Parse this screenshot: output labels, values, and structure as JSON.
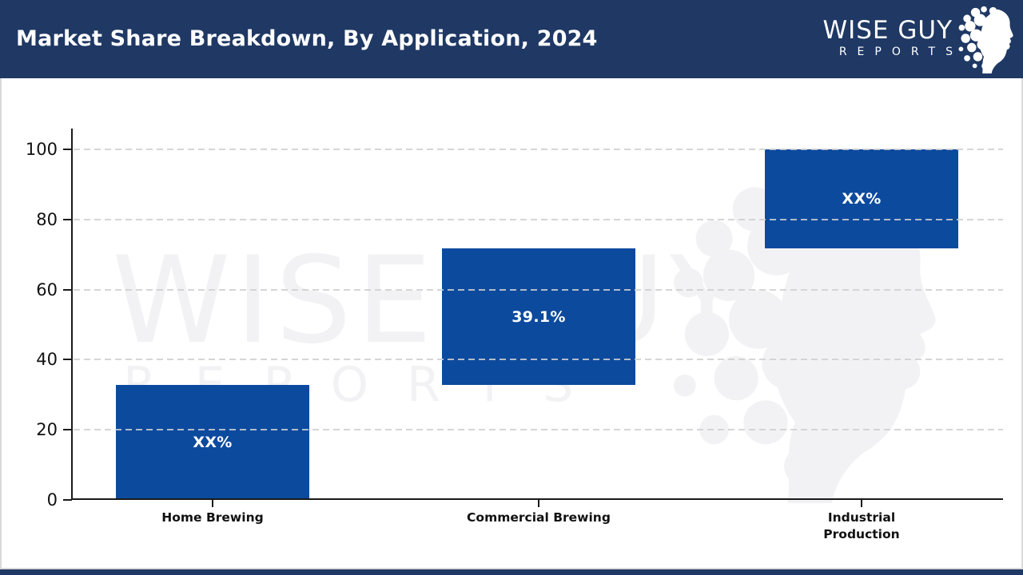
{
  "header": {
    "title": "Market Share Breakdown, By Application, 2024",
    "logo": {
      "line1": "WISE GUY",
      "line2": "REPORTS"
    }
  },
  "watermark": {
    "line1": "WISE GUY",
    "line2": "REPORTS"
  },
  "colors": {
    "header_bg": "#1f3864",
    "footer_bg": "#1f3864",
    "bar": "#0c4a9e",
    "grid": "#cfcfcf",
    "axis": "#1a1a1a",
    "bar_label_text": "#ffffff",
    "watermark": "#f2f2f4"
  },
  "chart_data": {
    "type": "bar",
    "subtype": "floating-segment-breakdown",
    "title": "Market Share Breakdown, By Application, 2024",
    "categories": [
      "Home Brewing",
      "Commercial Brewing",
      "Industrial Production"
    ],
    "segments": [
      {
        "category": "Home Brewing",
        "start": 0,
        "end": 32.8,
        "value_label": "XX%"
      },
      {
        "category": "Commercial Brewing",
        "start": 32.7,
        "end": 71.8,
        "value_label": "39.1%"
      },
      {
        "category": "Industrial Production",
        "start": 71.8,
        "end": 100,
        "value_label": "XX%"
      }
    ],
    "values": [
      32.8,
      39.1,
      28.2
    ],
    "ylim": [
      0,
      105
    ],
    "yticks": [
      0,
      20,
      40,
      60,
      80,
      100
    ],
    "grid": "horizontal-dashed",
    "legend": "none",
    "bar_color": "#0c4a9e"
  }
}
